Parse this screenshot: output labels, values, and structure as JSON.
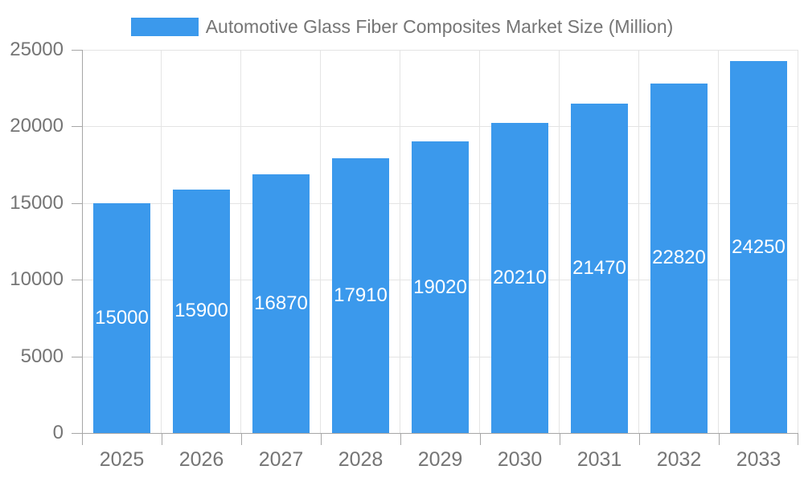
{
  "chart_data": {
    "type": "bar",
    "title": "Automotive Glass Fiber Composites Market Size (Million)",
    "xlabel": "",
    "ylabel": "",
    "categories": [
      "2025",
      "2026",
      "2027",
      "2028",
      "2029",
      "2030",
      "2031",
      "2032",
      "2033"
    ],
    "values": [
      15000,
      15900,
      16870,
      17910,
      19020,
      20210,
      21470,
      22820,
      24250
    ],
    "value_labels": [
      "15000",
      "15900",
      "16870",
      "17910",
      "19020",
      "20210",
      "21470",
      "22820",
      "24250"
    ],
    "ylim": [
      0,
      25000
    ],
    "ytick_interval": 5000,
    "ytick_values": [
      0,
      5000,
      10000,
      15000,
      20000,
      25000
    ],
    "ytick_labels": [
      "0",
      "5000",
      "10000",
      "15000",
      "20000",
      "25000"
    ],
    "grid": true,
    "legend_position": "top-center",
    "colors": {
      "bar": "#3B99EC",
      "grid_line": "#e4e4e4",
      "axis_line": "#a6a6a6",
      "axis_label": "#757575",
      "value_label": "#ffffff",
      "legend_text": "#757575"
    }
  }
}
